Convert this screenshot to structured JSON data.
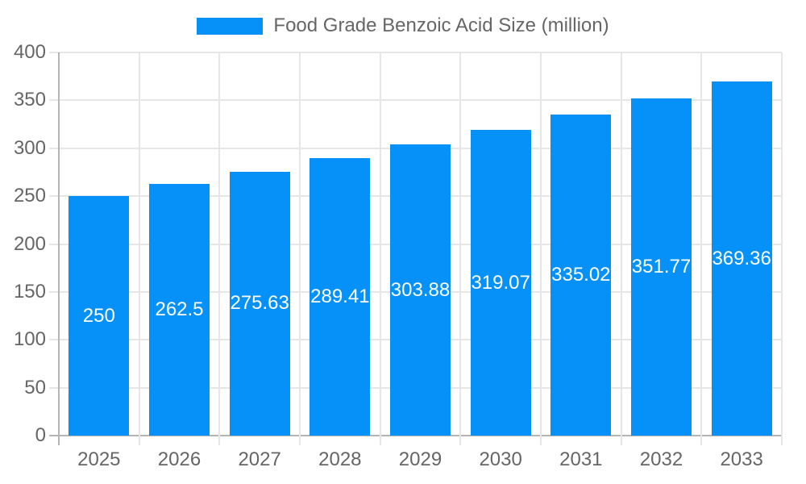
{
  "legend": {
    "label": "Food Grade Benzoic Acid Size (million)"
  },
  "chart_data": {
    "type": "bar",
    "title": "Food Grade Benzoic Acid Size (million)",
    "categories": [
      "2025",
      "2026",
      "2027",
      "2028",
      "2029",
      "2030",
      "2031",
      "2032",
      "2033"
    ],
    "values": [
      250,
      262.5,
      275.63,
      289.41,
      303.88,
      319.07,
      335.02,
      351.77,
      369.36
    ],
    "value_labels": [
      "250",
      "262.5",
      "275.63",
      "289.41",
      "303.88",
      "319.07",
      "335.02",
      "351.77",
      "369.36"
    ],
    "xlabel": "",
    "ylabel": "",
    "ylim": [
      0,
      400
    ],
    "yticks": [
      0,
      50,
      100,
      150,
      200,
      250,
      300,
      350,
      400
    ],
    "grid": true,
    "legend_position": "top",
    "colors": {
      "bar": "#0591f8",
      "bar_label": "#ffffff",
      "axis_text": "#666666",
      "grid_line": "#e6e6e6",
      "axis_line": "#b5b5b5",
      "background": "#ffffff"
    }
  }
}
